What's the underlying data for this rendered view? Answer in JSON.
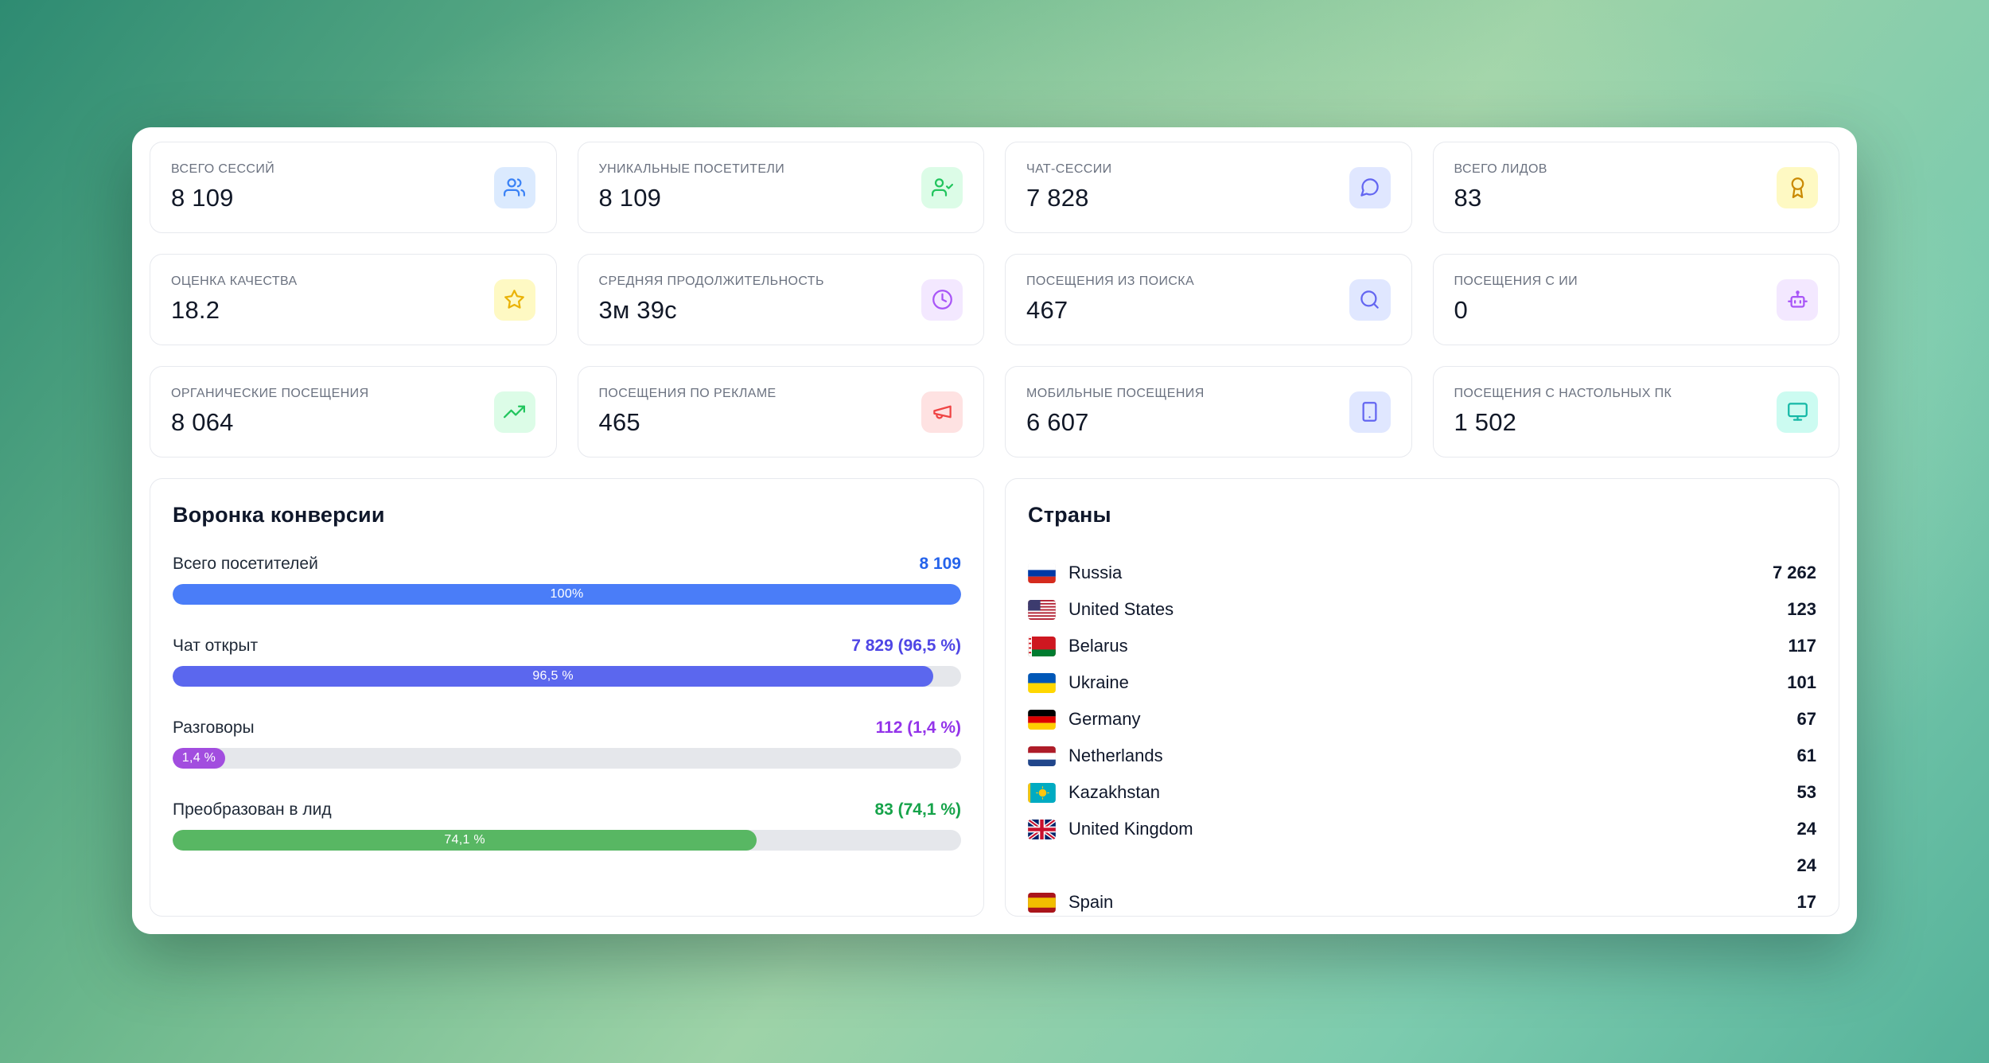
{
  "stats": {
    "cards": [
      {
        "label": "ВСЕГО СЕССИЙ",
        "value": "8 109",
        "icon": "users-icon",
        "icon_color": "#3b82f6",
        "icon_bg": "#dbeafe"
      },
      {
        "label": "УНИКАЛЬНЫЕ ПОСЕТИТЕЛИ",
        "value": "8 109",
        "icon": "user-check-icon",
        "icon_color": "#22c55e",
        "icon_bg": "#dcfce7"
      },
      {
        "label": "ЧАТ-СЕССИИ",
        "value": "7 828",
        "icon": "chat-bubble-icon",
        "icon_color": "#6366f1",
        "icon_bg": "#e0e7ff"
      },
      {
        "label": "ВСЕГО ЛИДОВ",
        "value": "83",
        "icon": "award-icon",
        "icon_color": "#ca8a04",
        "icon_bg": "#fef9c3"
      },
      {
        "label": "ОЦЕНКА КАЧЕСТВА",
        "value": "18.2",
        "icon": "star-icon",
        "icon_color": "#eab308",
        "icon_bg": "#fef9c3"
      },
      {
        "label": "СРЕДНЯЯ ПРОДОЛЖИТЕЛЬНОСТЬ",
        "value": "3м 39с",
        "icon": "clock-icon",
        "icon_color": "#a855f7",
        "icon_bg": "#f3e8ff"
      },
      {
        "label": "ПОСЕЩЕНИЯ ИЗ ПОИСКА",
        "value": "467",
        "icon": "search-icon",
        "icon_color": "#6366f1",
        "icon_bg": "#e0e7ff"
      },
      {
        "label": "ПОСЕЩЕНИЯ С ИИ",
        "value": "0",
        "icon": "robot-icon",
        "icon_color": "#a855f7",
        "icon_bg": "#f3e8ff"
      },
      {
        "label": "ОРГАНИЧЕСКИЕ ПОСЕЩЕНИЯ",
        "value": "8 064",
        "icon": "trending-up-icon",
        "icon_color": "#22c55e",
        "icon_bg": "#dcfce7"
      },
      {
        "label": "ПОСЕЩЕНИЯ ПО РЕКЛАМЕ",
        "value": "465",
        "icon": "megaphone-icon",
        "icon_color": "#ef4444",
        "icon_bg": "#fee2e2"
      },
      {
        "label": "МОБИЛЬНЫЕ ПОСЕЩЕНИЯ",
        "value": "6 607",
        "icon": "smartphone-icon",
        "icon_color": "#6366f1",
        "icon_bg": "#e0e7ff"
      },
      {
        "label": "ПОСЕЩЕНИЯ С НАСТОЛЬНЫХ ПК",
        "value": "1 502",
        "icon": "monitor-icon",
        "icon_color": "#14b8a6",
        "icon_bg": "#ccfbf1"
      }
    ]
  },
  "funnel": {
    "title": "Воронка конверсии",
    "rows": [
      {
        "label": "Всего посетителей",
        "value": "8 109",
        "bar_label": "100%",
        "percent": 100,
        "bar_color": "#4a7df8",
        "value_color": "#2563eb"
      },
      {
        "label": "Чат открыт",
        "value": "7 829 (96,5 %)",
        "bar_label": "96,5 %",
        "percent": 96.5,
        "bar_color": "#5b67ee",
        "value_color": "#4f46e5"
      },
      {
        "label": "Разговоры",
        "value": "112 (1,4 %)",
        "bar_label": "1,4 %",
        "percent": 1.4,
        "bar_color": "#a24ddf",
        "value_color": "#9333ea"
      },
      {
        "label": "Преобразован в лид",
        "value": "83 (74,1 %)",
        "bar_label": "74,1 %",
        "percent": 74.1,
        "bar_color": "#58b763",
        "value_color": "#16a34a"
      }
    ]
  },
  "countries": {
    "title": "Страны",
    "items": [
      {
        "name": "Russia",
        "value": "7 262",
        "flag": "russia-flag"
      },
      {
        "name": "United States",
        "value": "123",
        "flag": "us-flag"
      },
      {
        "name": "Belarus",
        "value": "117",
        "flag": "belarus-flag"
      },
      {
        "name": "Ukraine",
        "value": "101",
        "flag": "ukraine-flag"
      },
      {
        "name": "Germany",
        "value": "67",
        "flag": "germany-flag"
      },
      {
        "name": "Netherlands",
        "value": "61",
        "flag": "netherlands-flag"
      },
      {
        "name": "Kazakhstan",
        "value": "53",
        "flag": "kazakhstan-flag"
      },
      {
        "name": "United Kingdom",
        "value": "24",
        "flag": "uk-flag"
      },
      {
        "name": "",
        "value": "24",
        "flag": "none"
      },
      {
        "name": "Spain",
        "value": "17",
        "flag": "spain-flag"
      }
    ]
  }
}
